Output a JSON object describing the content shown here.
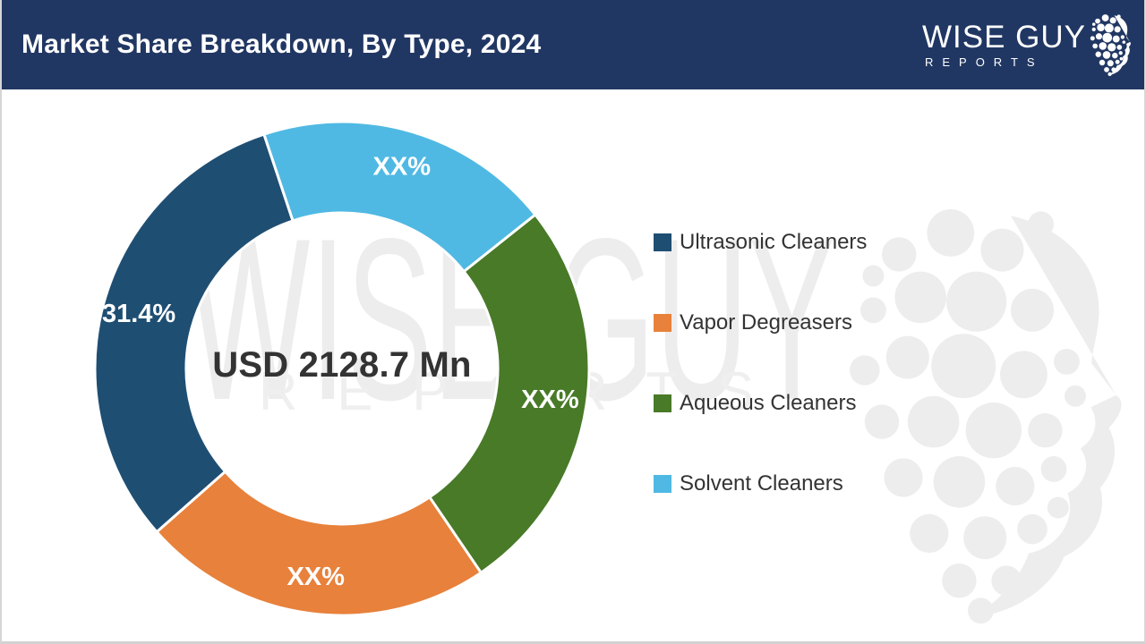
{
  "header": {
    "title": "Market Share Breakdown, By Type, 2024",
    "logo": {
      "name": "WISE GUY",
      "sub": "REPORTS"
    }
  },
  "watermark": {
    "line1": "WISE GUY",
    "line2": "REPORTS"
  },
  "chart_data": {
    "type": "pie",
    "donut": true,
    "title": "Market Share Breakdown, By Type, 2024",
    "center_label": "USD 2128.7 Mn",
    "categories": [
      "Ultrasonic Cleaners",
      "Vapor Degreasers",
      "Aqueous Cleaners",
      "Solvent Cleaners"
    ],
    "values": [
      31.4,
      23.0,
      26.2,
      19.4
    ],
    "slice_labels": [
      "31.4%",
      "XX%",
      "XX%",
      "XX%"
    ],
    "colors": [
      "#1f4e73",
      "#e8813b",
      "#487a28",
      "#4fb9e3"
    ],
    "start_angle_deg": 108.4,
    "direction": "counterclockwise",
    "inner_radius_ratio": 0.63,
    "legend_position": "right"
  }
}
